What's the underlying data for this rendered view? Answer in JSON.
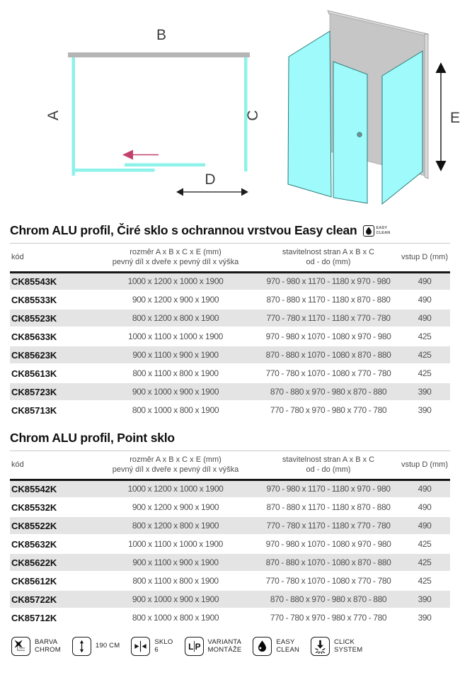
{
  "diagram_2d": {
    "label_a": "A",
    "label_b": "B",
    "label_c": "C",
    "label_d": "D",
    "colors": {
      "glass": "#8df2e9",
      "wall": "#b5b5b5",
      "arrow": "#c2406d"
    }
  },
  "diagram_3d": {
    "label_e": "E",
    "colors": {
      "glass": "#9ffbfb",
      "glass_edge": "#2a7a78",
      "wall": "#c6c6c6"
    }
  },
  "tables": [
    {
      "title": "Chrom ALU profil, Čiré sklo s ochrannou vrstvou Easy clean",
      "title_badge": {
        "icon": "water-drop-icon",
        "line1": "EASY",
        "line2": "CLEAN"
      },
      "columns": {
        "kod": "kód",
        "rozmer_line1": "rozměr A x B x C x E (mm)",
        "rozmer_line2": "pevný díl x dveře x pevný díl x výška",
        "stavitelnost_line1": "stavitelnost stran A x B x C",
        "stavitelnost_line2": "od - do (mm)",
        "vstup": "vstup D (mm)"
      },
      "rows": [
        {
          "kod": "CK85543K",
          "rozmer": "1000 x 1200 x 1000 x 1900",
          "stavitelnost": "970 - 980 x 1170 - 1180 x 970 - 980",
          "vstup": "490"
        },
        {
          "kod": "CK85533K",
          "rozmer": "900 x 1200 x 900 x 1900",
          "stavitelnost": "870 - 880 x 1170 - 1180 x 870 - 880",
          "vstup": "490"
        },
        {
          "kod": "CK85523K",
          "rozmer": "800 x 1200 x 800 x 1900",
          "stavitelnost": "770 - 780 x 1170 - 1180 x 770 - 780",
          "vstup": "490"
        },
        {
          "kod": "CK85633K",
          "rozmer": "1000 x 1100 x 1000 x 1900",
          "stavitelnost": "970 - 980 x 1070 - 1080 x 970 - 980",
          "vstup": "425"
        },
        {
          "kod": "CK85623K",
          "rozmer": "900 x 1100 x 900 x 1900",
          "stavitelnost": "870 - 880 x 1070 - 1080 x 870 - 880",
          "vstup": "425"
        },
        {
          "kod": "CK85613K",
          "rozmer": "800 x 1100 x 800 x 1900",
          "stavitelnost": "770 - 780 x 1070 - 1080 x 770 - 780",
          "vstup": "425"
        },
        {
          "kod": "CK85723K",
          "rozmer": "900 x 1000 x 900 x 1900",
          "stavitelnost": "870 - 880 x 970 - 980 x 870 - 880",
          "vstup": "390"
        },
        {
          "kod": "CK85713K",
          "rozmer": "800 x 1000 x 800 x 1900",
          "stavitelnost": "770 - 780 x 970 - 980 x 770 - 780",
          "vstup": "390"
        }
      ]
    },
    {
      "title": "Chrom ALU profil, Point sklo",
      "columns": {
        "kod": "kód",
        "rozmer_line1": "rozměr A x B x C x E (mm)",
        "rozmer_line2": "pevný díl x dveře x pevný díl x výška",
        "stavitelnost_line1": "stavitelnost stran A x B x C",
        "stavitelnost_line2": "od - do (mm)",
        "vstup": "vstup D (mm)"
      },
      "rows": [
        {
          "kod": "CK85542K",
          "rozmer": "1000 x 1200 x 1000 x 1900",
          "stavitelnost": "970 - 980 x 1170 - 1180 x 970 - 980",
          "vstup": "490"
        },
        {
          "kod": "CK85532K",
          "rozmer": "900 x 1200 x 900 x 1900",
          "stavitelnost": "870 - 880 x 1170 - 1180 x 870 - 880",
          "vstup": "490"
        },
        {
          "kod": "CK85522K",
          "rozmer": "800 x 1200 x 800 x 1900",
          "stavitelnost": "770 - 780 x 1170 - 1180 x 770 - 780",
          "vstup": "490"
        },
        {
          "kod": "CK85632K",
          "rozmer": "1000 x 1100 x 1000 x 1900",
          "stavitelnost": "970 - 980 x 1070 - 1080 x 970 - 980",
          "vstup": "425"
        },
        {
          "kod": "CK85622K",
          "rozmer": "900 x 1100 x 900 x 1900",
          "stavitelnost": "870 - 880 x 1070 - 1080 x 870 - 880",
          "vstup": "425"
        },
        {
          "kod": "CK85612K",
          "rozmer": "800 x 1100 x 800 x 1900",
          "stavitelnost": "770 - 780 x 1070 - 1080 x 770 - 780",
          "vstup": "425"
        },
        {
          "kod": "CK85722K",
          "rozmer": "900 x 1000 x 900 x 1900",
          "stavitelnost": "870 - 880 x 970 - 980 x 870 - 880",
          "vstup": "390"
        },
        {
          "kod": "CK85712K",
          "rozmer": "800 x 1000 x 800 x 1900",
          "stavitelnost": "770 - 780 x 970 - 980 x 770 - 780",
          "vstup": "390"
        }
      ]
    }
  ],
  "footer": {
    "items": [
      {
        "icon": "chrome-profile-star-icon",
        "line1": "BARVA",
        "line2": "CHROM"
      },
      {
        "icon": "height-arrow-icon",
        "line1": "190 CM",
        "line2": ""
      },
      {
        "icon": "glass-thickness-icon",
        "line1": "SKLO",
        "line2": "6"
      },
      {
        "icon": "mount-variant-icon",
        "icon_text_l": "L",
        "icon_text_p": "P",
        "line1": "VARIANTA",
        "line2": "MONTÁŽE"
      },
      {
        "icon": "water-drop-icon",
        "line1": "EASY",
        "line2": "CLEAN"
      },
      {
        "icon": "click-system-icon",
        "line1": "CLICK",
        "line2": "SYSTEM"
      }
    ]
  }
}
